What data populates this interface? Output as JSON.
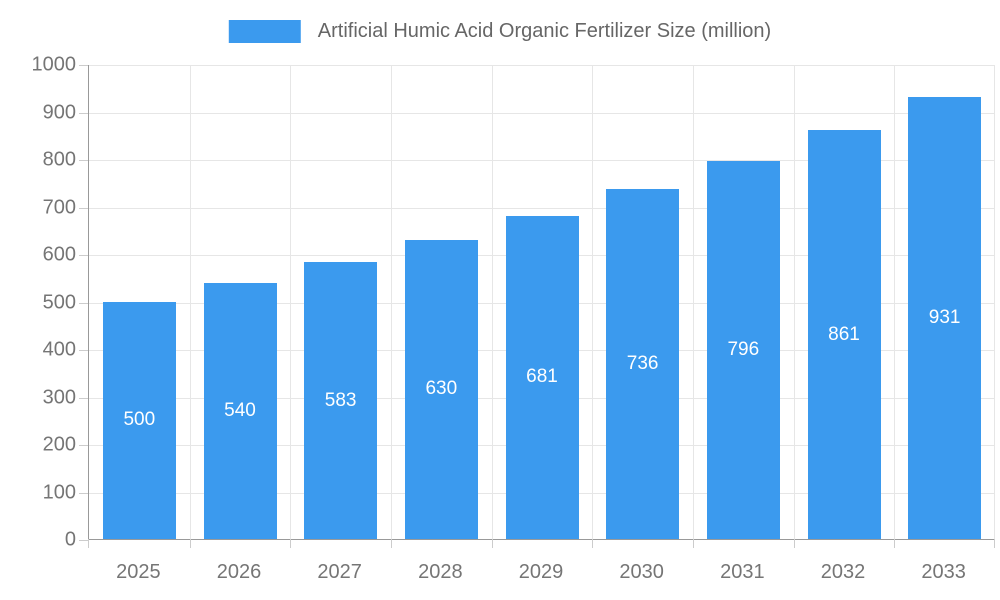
{
  "legend": {
    "items": [
      {
        "label": "Artificial Humic Acid Organic Fertilizer Size (million)",
        "color": "#3B9AEE"
      }
    ]
  },
  "chart_data": {
    "type": "bar",
    "title": "",
    "categories": [
      "2025",
      "2026",
      "2027",
      "2028",
      "2029",
      "2030",
      "2031",
      "2032",
      "2033"
    ],
    "series": [
      {
        "name": "Artificial Humic Acid Organic Fertilizer Size (million)",
        "values": [
          500,
          540,
          583,
          630,
          681,
          736,
          796,
          861,
          931
        ],
        "color": "#3B9AEE"
      }
    ],
    "xlabel": "",
    "ylabel": "",
    "ylim": [
      0,
      1000
    ],
    "y_ticks": [
      0,
      100,
      200,
      300,
      400,
      500,
      600,
      700,
      800,
      900,
      1000
    ],
    "grid": true,
    "legend_position": "top",
    "value_labels": true
  },
  "colors": {
    "bar": "#3B9AEE",
    "grid_line": "#E6E6E6",
    "axis_line": "#999999",
    "tick": "#CCCCCC",
    "axis_text": "#757575",
    "legend_text": "#666666",
    "value_label": "#FFFFFF",
    "background": "#FFFFFF"
  }
}
